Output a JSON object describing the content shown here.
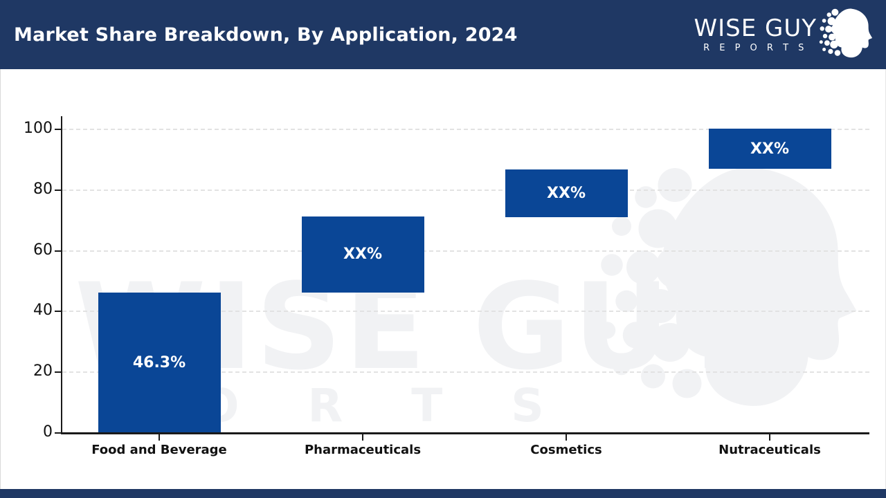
{
  "header": {
    "title": "Market Share Breakdown, By Application, 2024",
    "logo": {
      "name": "WISE GUY",
      "subname": "R E P O R T S"
    }
  },
  "watermark": {
    "line1": "WISE GUY",
    "line2": "P O R T S"
  },
  "chart_data": {
    "type": "bar",
    "subtype": "floating-waterfall",
    "title": "Market Share Breakdown, By Application, 2024",
    "categories": [
      "Food and Beverage",
      "Pharmaceuticals",
      "Cosmetics",
      "Nutraceuticals"
    ],
    "bars": [
      {
        "category": "Food and Beverage",
        "start": 0,
        "end": 46.3,
        "label": "46.3%"
      },
      {
        "category": "Pharmaceuticals",
        "start": 46.3,
        "end": 71.3,
        "label": "XX%"
      },
      {
        "category": "Cosmetics",
        "start": 71.0,
        "end": 86.9,
        "label": "XX%"
      },
      {
        "category": "Nutraceuticals",
        "start": 86.9,
        "end": 100.3,
        "label": "XX%"
      }
    ],
    "xlabel": "",
    "ylabel": "",
    "yticks": [
      0,
      20,
      40,
      60,
      80,
      100
    ],
    "ylim": [
      0,
      105
    ],
    "grid": "dashed-horizontal",
    "legend": "none",
    "bar_color": "#0a4696",
    "bar_label_color": "#ffffff"
  },
  "colors": {
    "header_bg": "#1f3864",
    "footer_bg": "#1f3864",
    "bar": "#0a4696",
    "gridline": "#e2e2e2",
    "axis": "#1a1a1a",
    "watermark": "#f1f2f4"
  }
}
